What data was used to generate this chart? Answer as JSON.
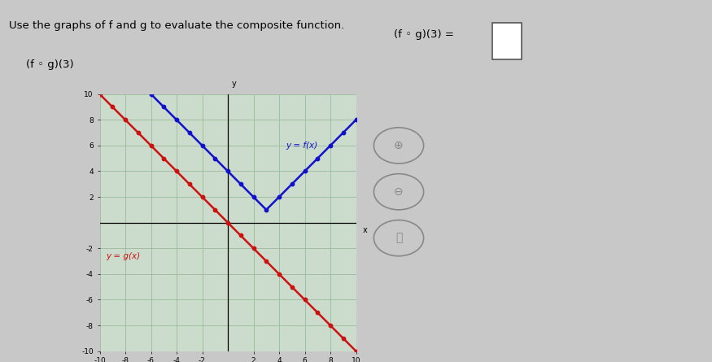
{
  "title_line1": "Use the graphs of f and g to evaluate the composite function.",
  "title_line2": "(f ◦ g)(3)",
  "answer_label": "(f ◦ g)(3) =",
  "xlim": [
    -10,
    10
  ],
  "ylim": [
    -10,
    10
  ],
  "xticks": [
    -10,
    -8,
    -6,
    -4,
    -2,
    2,
    4,
    6,
    8,
    10
  ],
  "yticks": [
    -10,
    -8,
    -6,
    -4,
    -2,
    2,
    4,
    6,
    8,
    10
  ],
  "f_label": "y = f(x)",
  "g_label": "y = g(x)",
  "f_color": "#1111cc",
  "g_color": "#cc1111",
  "bg_color": "#ccdccc",
  "grid_color": "#99bb99",
  "panel_bg": "#e8e8e8",
  "outer_bg": "#c8c8c8",
  "f_vertex_x": 3,
  "f_vertex_y": 1,
  "g_slope": -1,
  "g_intercept": 0
}
